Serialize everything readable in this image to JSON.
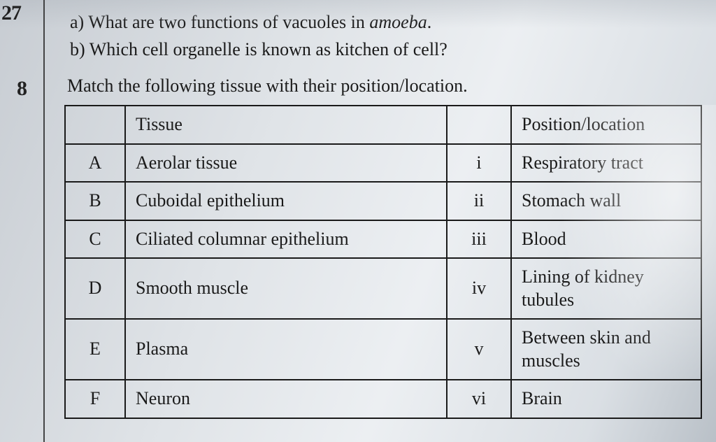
{
  "q27": {
    "number": "27",
    "a_prefix": "a) ",
    "a_text_1": "What are two functions of vacuoles in ",
    "a_italic": "amoeba",
    "a_text_2": ".",
    "b_prefix": "b) ",
    "b_text": "Which cell organelle is known as kitchen of cell?"
  },
  "q8": {
    "number": "8",
    "intro": "Match the following tissue with their position/location."
  },
  "table": {
    "header": {
      "tissue": "Tissue",
      "location": "Position/location"
    },
    "rows": [
      {
        "label": "A",
        "tissue": "Aerolar tissue",
        "num": "i",
        "location": "Respiratory tract"
      },
      {
        "label": "B",
        "tissue": "Cuboidal epithelium",
        "num": "ii",
        "location": "Stomach wall"
      },
      {
        "label": "C",
        "tissue": "Ciliated columnar epithelium",
        "num": "iii",
        "location": "Blood"
      },
      {
        "label": "D",
        "tissue": "Smooth muscle",
        "num": "iv",
        "location": "Lining of kidney tubules"
      },
      {
        "label": "E",
        "tissue": "Plasma",
        "num": "v",
        "location": "Between skin and muscles"
      },
      {
        "label": "F",
        "tissue": "Neuron",
        "num": "vi",
        "location": "Brain"
      }
    ]
  },
  "style": {
    "font_family": "Times New Roman",
    "body_fontsize_pt": 20,
    "border_color": "#1a1a1a",
    "text_color": "#1a1a1a",
    "page_bg_gradient": [
      "#c8cdd3",
      "#eceff2",
      "#b9c0c7"
    ]
  }
}
